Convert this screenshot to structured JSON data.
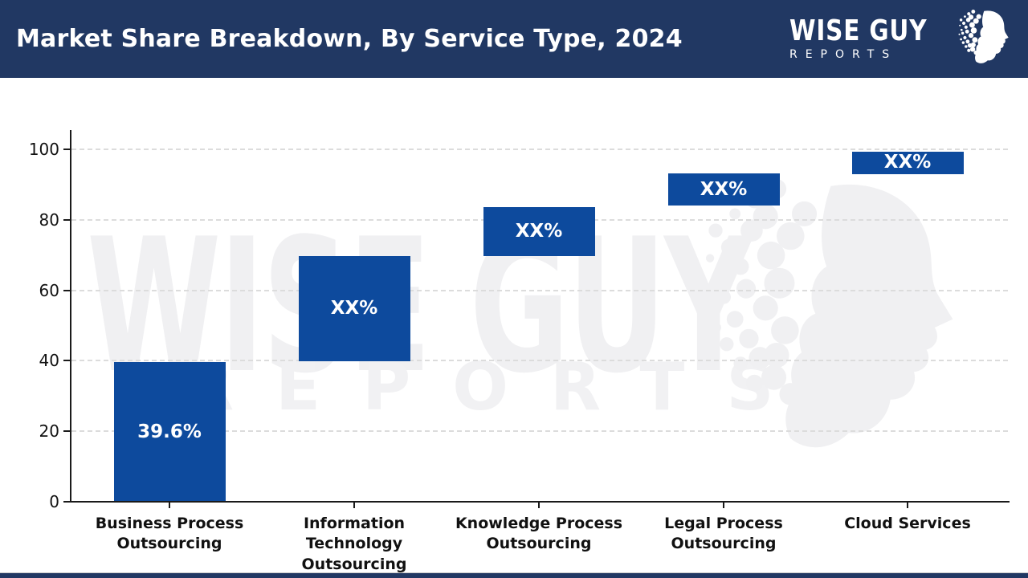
{
  "header": {
    "title": "Market Share Breakdown, By Service Type, 2024",
    "logo": {
      "line1": "WISE GUY",
      "line2": "REPORTS"
    }
  },
  "watermark": {
    "line1": "WISE GUY",
    "line2": "REPORTS"
  },
  "chart_data": {
    "type": "bar",
    "subtype": "waterfall-stacked-breakdown",
    "title": "Market Share Breakdown, By Service Type, 2024",
    "xlabel": "",
    "ylabel": "",
    "ylim": [
      0,
      105
    ],
    "y_ticks": [
      0,
      20,
      40,
      60,
      80,
      100
    ],
    "grid": "horizontal-dashed",
    "bar_color": "#0d4a9d",
    "categories": [
      "Business Process Outsourcing",
      "Information Technology Outsourcing",
      "Knowledge Process Outsourcing",
      "Legal Process Outsourcing",
      "Cloud Services"
    ],
    "bars": [
      {
        "category": "Business Process Outsourcing",
        "label_lines": "Business Process\nOutsourcing",
        "start": 0,
        "end": 39.6,
        "value_label": "39.6%"
      },
      {
        "category": "Information Technology Outsourcing",
        "label_lines": "Information\nTechnology\nOutsourcing",
        "start": 39.8,
        "end": 69.8,
        "value_label": "XX%"
      },
      {
        "category": "Knowledge Process Outsourcing",
        "label_lines": "Knowledge Process\nOutsourcing",
        "start": 69.8,
        "end": 83.6,
        "value_label": "XX%"
      },
      {
        "category": "Legal Process Outsourcing",
        "label_lines": "Legal Process\nOutsourcing",
        "start": 84.0,
        "end": 93.2,
        "value_label": "XX%"
      },
      {
        "category": "Cloud Services",
        "label_lines": "Cloud Services",
        "start": 93.0,
        "end": 99.3,
        "value_label": "XX%"
      }
    ]
  },
  "colors": {
    "header_bg": "#213863",
    "footer_bg": "#213863",
    "bar_blue": "#0d4a9d",
    "grid_gray": "#dcdcdc",
    "axis_black": "#1a1a1a",
    "watermark_gray": "#f0f0f2",
    "title_text": "#ffffff"
  }
}
